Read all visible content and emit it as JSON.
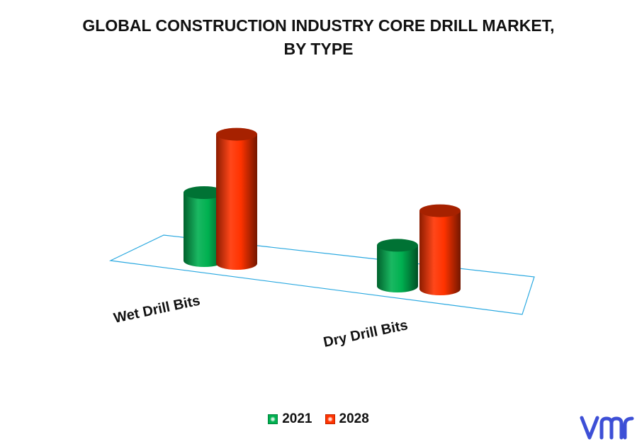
{
  "title_lines": [
    "GLOBAL CONSTRUCTION INDUSTRY CORE DRILL MARKET,",
    "BY TYPE"
  ],
  "chart_data": {
    "type": "bar",
    "title": "GLOBAL CONSTRUCTION INDUSTRY CORE DRILL MARKET, BY TYPE",
    "categories": [
      "Wet Drill Bits",
      "Dry Drill Bits"
    ],
    "series": [
      {
        "name": "2021",
        "color": "#00b050",
        "values": [
          100,
          60
        ]
      },
      {
        "name": "2028",
        "color": "#ff3300",
        "values": [
          190,
          115
        ]
      }
    ],
    "ylim": [
      0,
      200
    ],
    "grid": false,
    "legend_position": "bottom"
  },
  "brand": {
    "logo_icon": "vmr-logo-icon",
    "color": "#3d4fd6"
  }
}
